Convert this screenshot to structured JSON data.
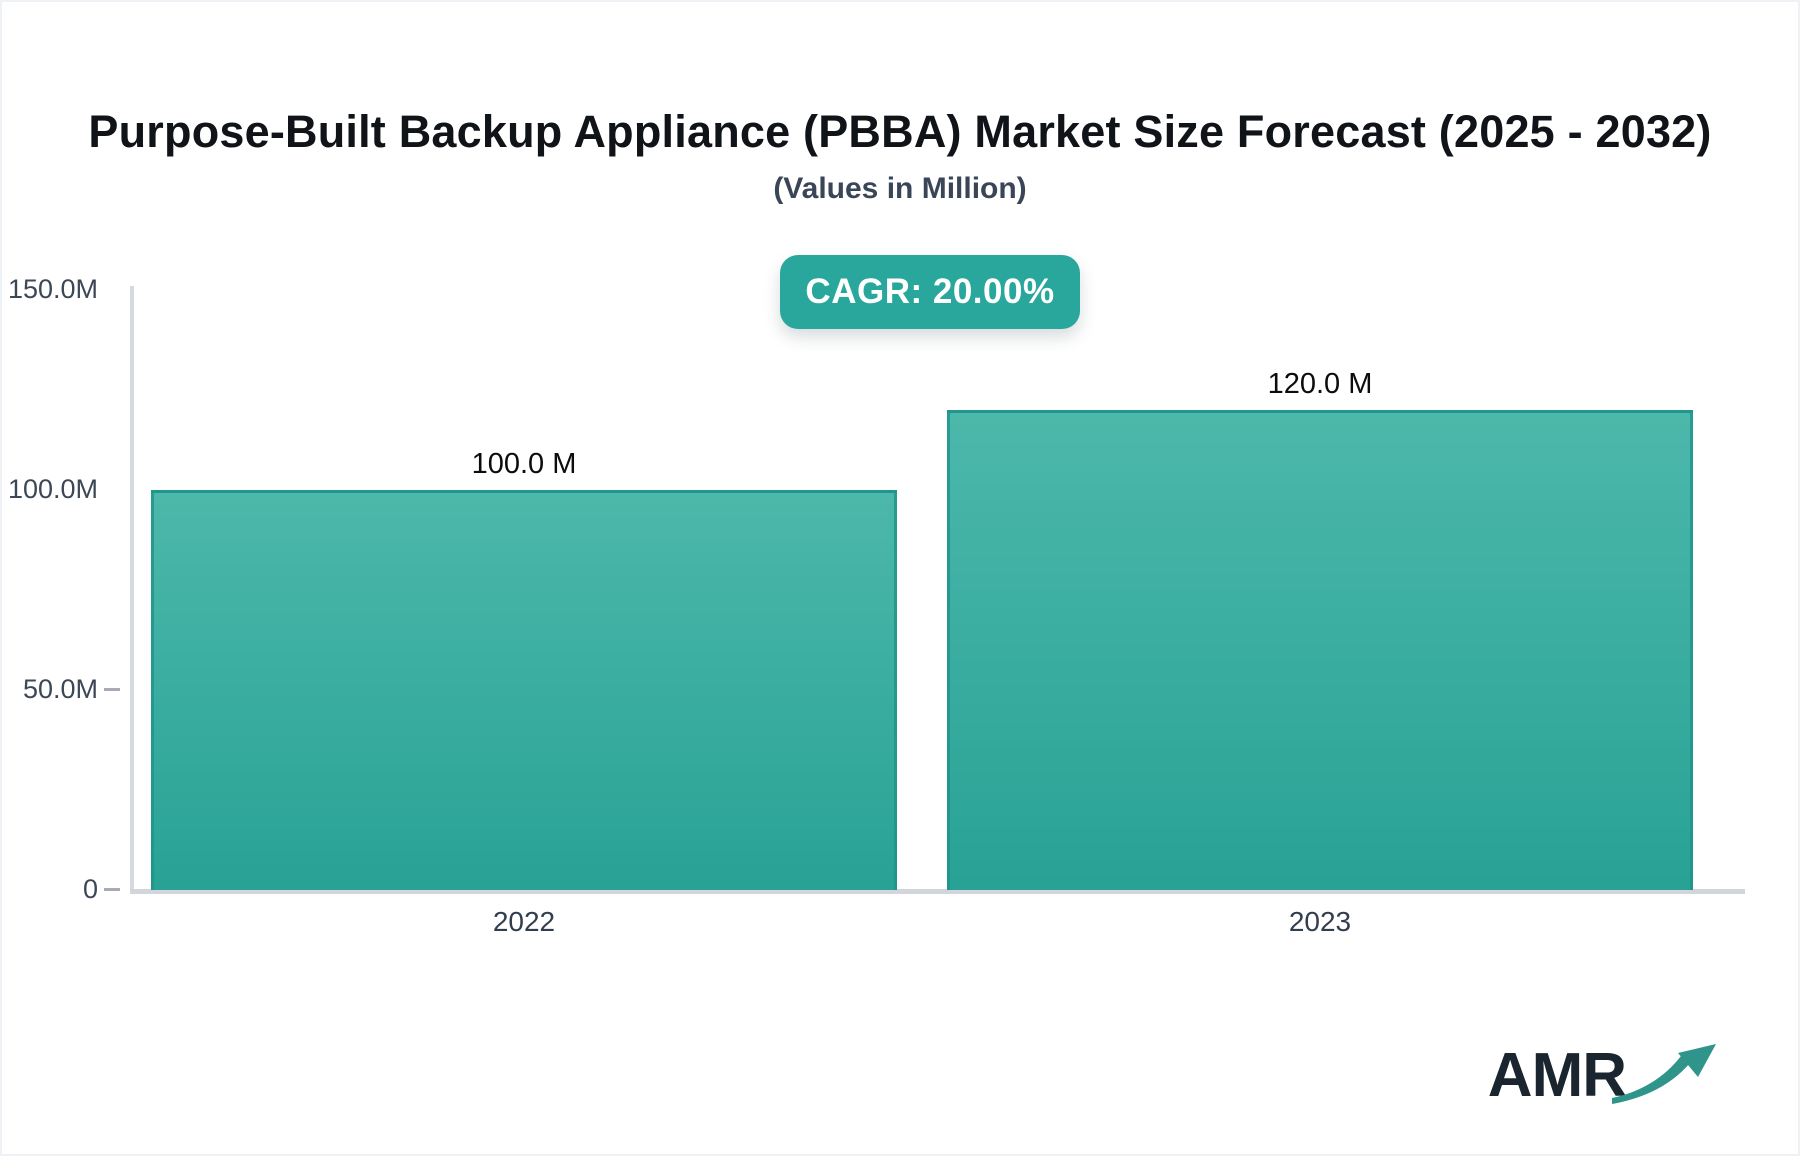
{
  "chart_data": {
    "type": "bar",
    "title": "Purpose-Built Backup Appliance (PBBA) Market Size Forecast (2025 - 2032)",
    "subtitle": "(Values in Million)",
    "cagr_label": "CAGR: 20.00%",
    "categories": [
      "2022",
      "2023"
    ],
    "values": [
      100.0,
      120.0
    ],
    "value_labels": [
      "100.0 M",
      "120.0 M"
    ],
    "xlabel": "",
    "ylabel": "",
    "ylim": [
      0,
      150
    ],
    "yticks": [
      {
        "value": 150,
        "label": "150.0M",
        "dash": false
      },
      {
        "value": 100,
        "label": "100.0M",
        "dash": false
      },
      {
        "value": 50,
        "label": "50.0M",
        "dash": true
      },
      {
        "value": 0,
        "label": "0",
        "dash": true
      }
    ],
    "grid": false,
    "legend": "none",
    "colors": {
      "bar_gradient_top": "#4cb8ab",
      "bar_gradient_bottom": "#28a295",
      "bar_border": "#1f948a",
      "badge": "#2aa79c",
      "axis_line": "#d5d9e0",
      "tick": "#a6abb5",
      "title": "#101318",
      "subtitle": "#3a4657"
    }
  },
  "logo": {
    "text": "AMR",
    "text_color": "#1a2530",
    "arrow_color": "#2f9489"
  }
}
